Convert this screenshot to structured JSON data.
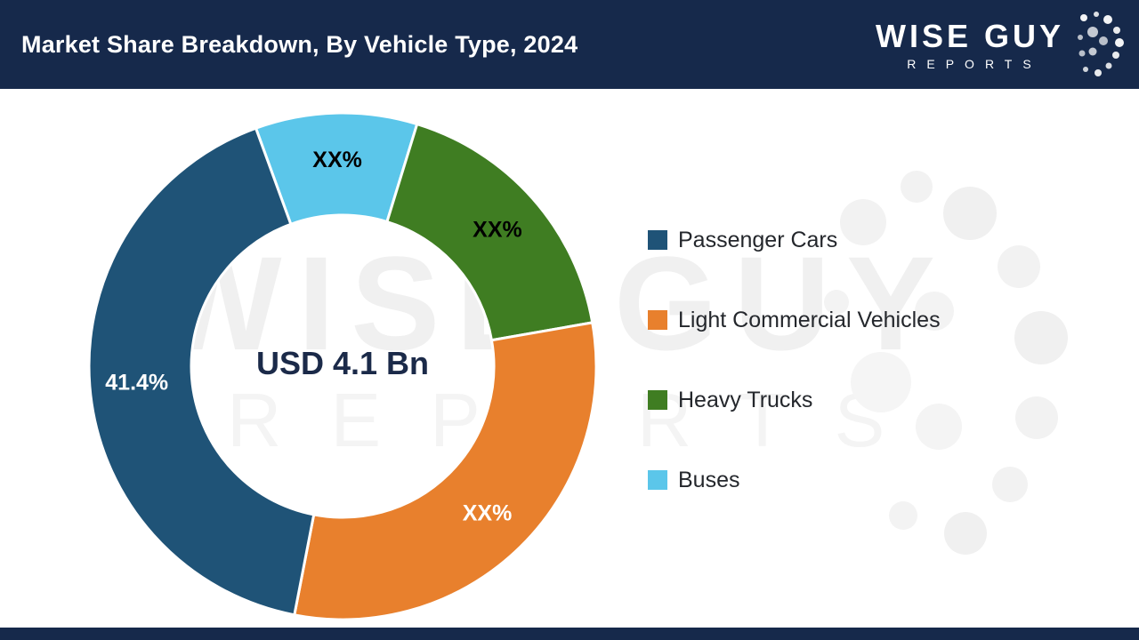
{
  "header": {
    "title": "Market Share Breakdown, By Vehicle Type, 2024",
    "logo": {
      "line1": "WISE GUY",
      "line2": "REPORTS"
    }
  },
  "watermark": {
    "line1": "WISE GUY",
    "line2": "REPORTS"
  },
  "colors": {
    "header_bg": "#16294b",
    "passenger_cars": "#1f5377",
    "light_commercial_vehicles": "#e8802d",
    "heavy_trucks": "#3f7d22",
    "buses": "#5bc6ea"
  },
  "chart_data": {
    "type": "pie",
    "donut": true,
    "title": "Market Share Breakdown, By Vehicle Type, 2024",
    "center_text": "USD 4.1 Bn",
    "start_angle_deg": -20,
    "legend_position": "right",
    "slices": [
      {
        "name": "Buses",
        "value": 10.3,
        "label": "XX%",
        "color": "#5bc6ea",
        "label_color": "#000000"
      },
      {
        "name": "Heavy Trucks",
        "value": 17.5,
        "label": "XX%",
        "color": "#3f7d22",
        "label_color": "#000000"
      },
      {
        "name": "Light Commercial Vehicles",
        "value": 30.8,
        "label": "XX%",
        "color": "#e8802d",
        "label_color": "#ffffff"
      },
      {
        "name": "Passenger Cars",
        "value": 41.4,
        "label": "41.4%",
        "color": "#1f5377",
        "label_color": "#ffffff"
      }
    ],
    "legend": [
      {
        "label": "Passenger Cars",
        "color": "#1f5377"
      },
      {
        "label": "Light Commercial Vehicles",
        "color": "#e8802d"
      },
      {
        "label": "Heavy Trucks",
        "color": "#3f7d22"
      },
      {
        "label": "Buses",
        "color": "#5bc6ea"
      }
    ]
  }
}
